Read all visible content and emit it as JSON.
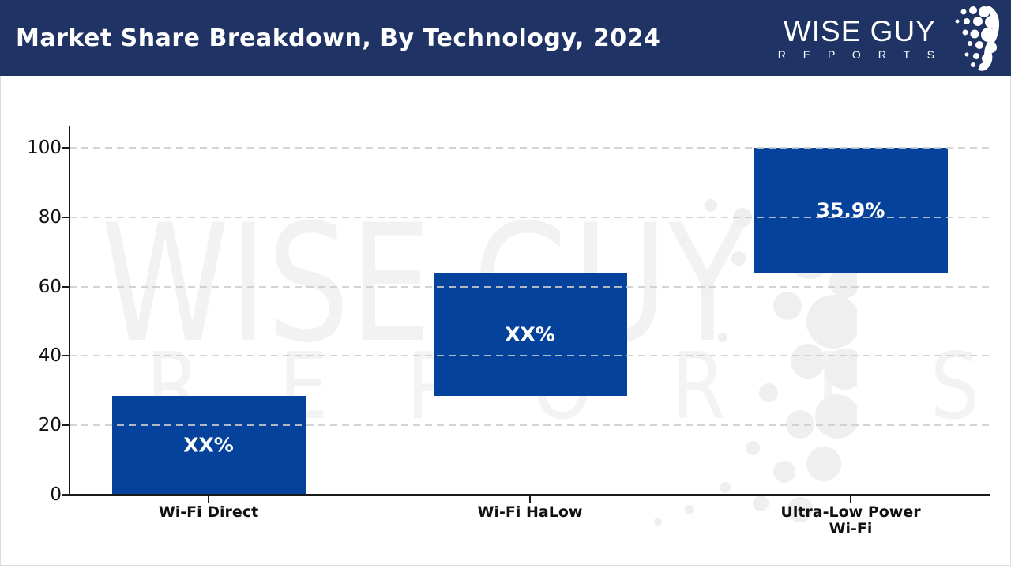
{
  "header": {
    "title": "Market Share Breakdown, By Technology, 2024",
    "bg_color": "#1F3465",
    "logo": {
      "line1": "WISE GUY",
      "line2": "R E P O R T S",
      "head_icon": "dotted-head-profile"
    }
  },
  "watermark": {
    "line1": "WISE GUY",
    "line2": "R E P O R T S",
    "color": "#f2f2f2",
    "head_icon": "dotted-head-profile"
  },
  "chart_data": {
    "type": "bar",
    "subtype": "floating-waterfall",
    "title": "Market Share Breakdown, By Technology, 2024",
    "categories": [
      "Wi-Fi Direct",
      "Wi-Fi HaLow",
      "Ultra-Low Power Wi-Fi"
    ],
    "segments": [
      {
        "category": "Wi-Fi Direct",
        "start": 0,
        "end": 28.5,
        "label": "XX%"
      },
      {
        "category": "Wi-Fi HaLow",
        "start": 28.5,
        "end": 64.1,
        "label": "XX%"
      },
      {
        "category": "Ultra-Low Power Wi-Fi",
        "start": 64.1,
        "end": 100,
        "label": "35.9%"
      }
    ],
    "y_ticks": [
      0,
      20,
      40,
      60,
      80,
      100
    ],
    "ylim": [
      0,
      106
    ],
    "xlabel": "",
    "ylabel": "",
    "bar_color": "#04429B",
    "grid": {
      "horizontal": true,
      "style": "dashed",
      "color": "#d9d9d9"
    },
    "legend": "none",
    "background": "#ffffff"
  }
}
